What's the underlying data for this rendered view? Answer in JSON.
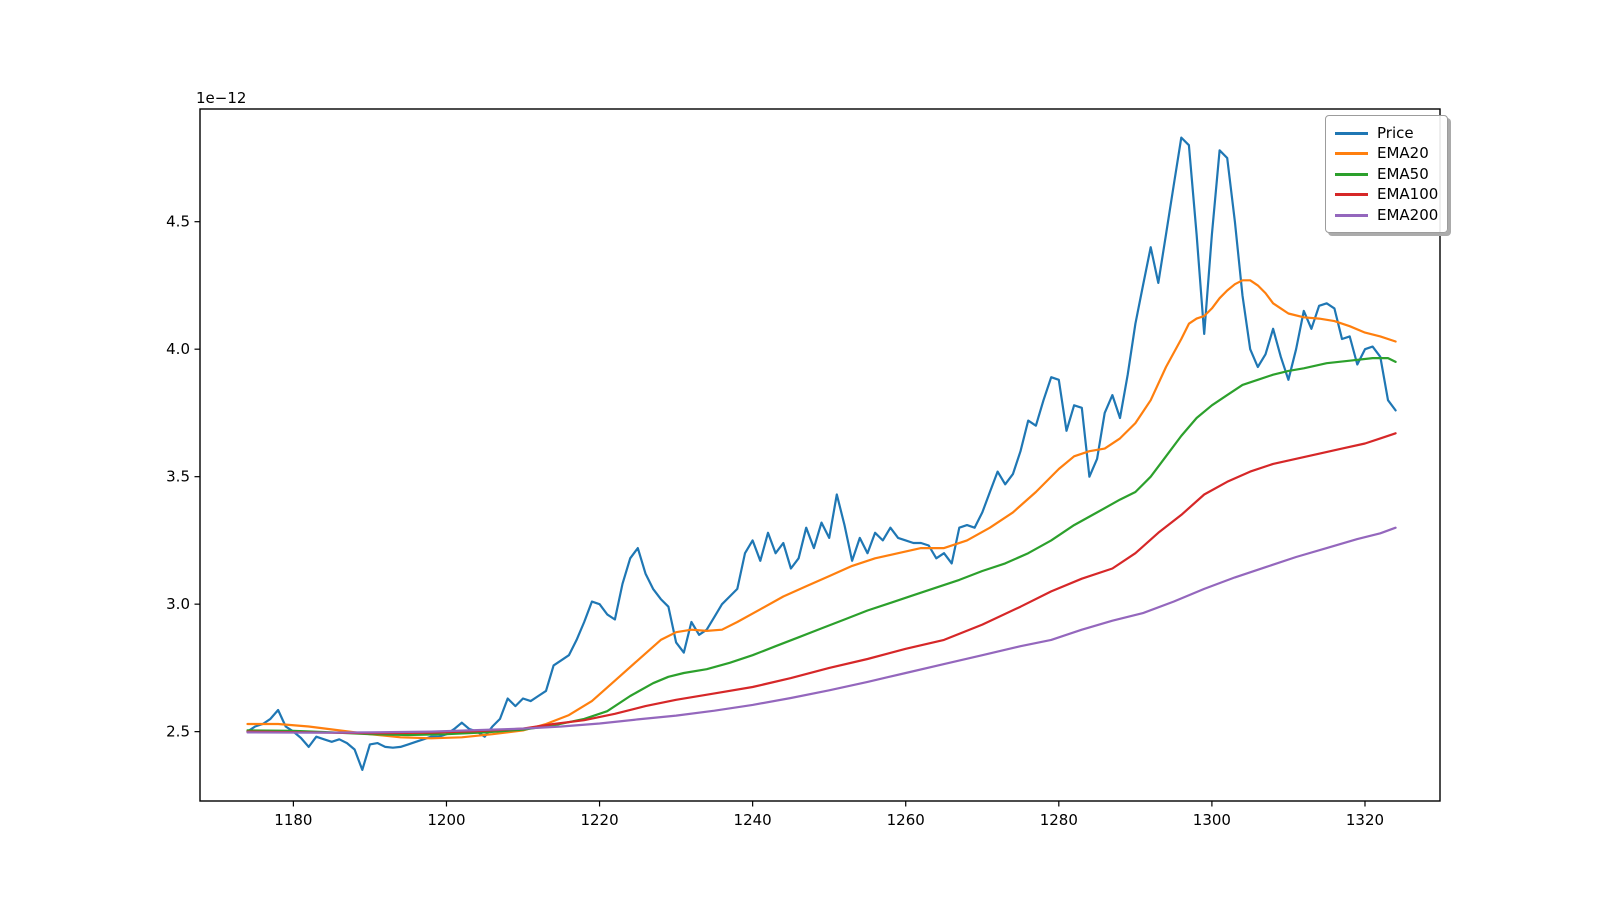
{
  "figure": {
    "background": "#ffffff"
  },
  "chart_data": {
    "type": "line",
    "title": "",
    "xlabel": "",
    "ylabel": "",
    "offset_label": "1e−12",
    "xlim": [
      1167.8,
      1329.8
    ],
    "ylim": [
      2.228,
      4.942
    ],
    "grid": false,
    "legend_position": "upper right",
    "x_ticks": [
      1180,
      1200,
      1220,
      1240,
      1260,
      1280,
      1300,
      1320
    ],
    "x_tick_labels": [
      "1180",
      "1200",
      "1220",
      "1240",
      "1260",
      "1280",
      "1300",
      "1320"
    ],
    "y_ticks": [
      2.5,
      3.0,
      3.5,
      4.0,
      4.5
    ],
    "y_tick_labels": [
      "2.5",
      "3.0",
      "3.5",
      "4.0",
      "4.5"
    ],
    "series": [
      {
        "name": "Price",
        "color": "#1f77b4",
        "x_start": 1174,
        "x_step": 1,
        "values": [
          2.5,
          2.52,
          2.53,
          2.55,
          2.585,
          2.52,
          2.5,
          2.475,
          2.44,
          2.48,
          2.47,
          2.46,
          2.47,
          2.455,
          2.43,
          2.35,
          2.45,
          2.455,
          2.44,
          2.437,
          2.44,
          2.45,
          2.46,
          2.47,
          2.48,
          2.48,
          2.49,
          2.51,
          2.535,
          2.51,
          2.5,
          2.48,
          2.52,
          2.55,
          2.63,
          2.6,
          2.63,
          2.62,
          2.64,
          2.66,
          2.76,
          2.78,
          2.8,
          2.86,
          2.93,
          3.01,
          3.0,
          2.96,
          2.94,
          3.08,
          3.18,
          3.22,
          3.12,
          3.06,
          3.02,
          2.99,
          2.85,
          2.81,
          2.93,
          2.88,
          2.9,
          2.95,
          3.0,
          3.03,
          3.06,
          3.2,
          3.25,
          3.17,
          3.28,
          3.2,
          3.24,
          3.14,
          3.18,
          3.3,
          3.22,
          3.32,
          3.26,
          3.43,
          3.31,
          3.17,
          3.26,
          3.2,
          3.28,
          3.25,
          3.3,
          3.26,
          3.25,
          3.24,
          3.24,
          3.23,
          3.18,
          3.2,
          3.16,
          3.3,
          3.31,
          3.3,
          3.36,
          3.44,
          3.52,
          3.47,
          3.51,
          3.6,
          3.72,
          3.7,
          3.8,
          3.89,
          3.88,
          3.68,
          3.78,
          3.77,
          3.5,
          3.57,
          3.75,
          3.82,
          3.73,
          3.9,
          4.1,
          4.25,
          4.4,
          4.26,
          4.45,
          4.64,
          4.83,
          4.8,
          4.45,
          4.06,
          4.45,
          4.78,
          4.75,
          4.5,
          4.21,
          4.0,
          3.93,
          3.98,
          4.08,
          3.97,
          3.88,
          4.0,
          4.15,
          4.08,
          4.17,
          4.18,
          4.16,
          4.04,
          4.05,
          3.94,
          4.0,
          4.01,
          3.97,
          3.8,
          3.76
        ]
      },
      {
        "name": "EMA20",
        "color": "#ff7f0e",
        "points": [
          [
            1174,
            2.53
          ],
          [
            1178,
            2.53
          ],
          [
            1182,
            2.52
          ],
          [
            1186,
            2.505
          ],
          [
            1190,
            2.49
          ],
          [
            1194,
            2.478
          ],
          [
            1198,
            2.474
          ],
          [
            1202,
            2.478
          ],
          [
            1206,
            2.49
          ],
          [
            1210,
            2.505
          ],
          [
            1213,
            2.53
          ],
          [
            1216,
            2.565
          ],
          [
            1219,
            2.62
          ],
          [
            1222,
            2.7
          ],
          [
            1225,
            2.78
          ],
          [
            1228,
            2.86
          ],
          [
            1230,
            2.89
          ],
          [
            1232,
            2.9
          ],
          [
            1234,
            2.895
          ],
          [
            1236,
            2.9
          ],
          [
            1238,
            2.93
          ],
          [
            1241,
            2.98
          ],
          [
            1244,
            3.03
          ],
          [
            1247,
            3.07
          ],
          [
            1250,
            3.11
          ],
          [
            1253,
            3.15
          ],
          [
            1256,
            3.18
          ],
          [
            1259,
            3.2
          ],
          [
            1262,
            3.22
          ],
          [
            1265,
            3.22
          ],
          [
            1268,
            3.25
          ],
          [
            1271,
            3.3
          ],
          [
            1274,
            3.36
          ],
          [
            1277,
            3.44
          ],
          [
            1280,
            3.53
          ],
          [
            1282,
            3.58
          ],
          [
            1284,
            3.6
          ],
          [
            1286,
            3.61
          ],
          [
            1288,
            3.65
          ],
          [
            1290,
            3.71
          ],
          [
            1292,
            3.8
          ],
          [
            1294,
            3.93
          ],
          [
            1296,
            4.04
          ],
          [
            1297,
            4.1
          ],
          [
            1298,
            4.12
          ],
          [
            1299,
            4.13
          ],
          [
            1300,
            4.16
          ],
          [
            1301,
            4.2
          ],
          [
            1302,
            4.23
          ],
          [
            1303,
            4.255
          ],
          [
            1304,
            4.27
          ],
          [
            1305,
            4.27
          ],
          [
            1306,
            4.25
          ],
          [
            1307,
            4.22
          ],
          [
            1308,
            4.18
          ],
          [
            1309,
            4.16
          ],
          [
            1310,
            4.14
          ],
          [
            1312,
            4.125
          ],
          [
            1314,
            4.12
          ],
          [
            1316,
            4.11
          ],
          [
            1318,
            4.09
          ],
          [
            1320,
            4.065
          ],
          [
            1322,
            4.05
          ],
          [
            1324,
            4.03
          ]
        ]
      },
      {
        "name": "EMA50",
        "color": "#2ca02c",
        "points": [
          [
            1174,
            2.505
          ],
          [
            1180,
            2.503
          ],
          [
            1185,
            2.497
          ],
          [
            1190,
            2.49
          ],
          [
            1195,
            2.487
          ],
          [
            1200,
            2.49
          ],
          [
            1205,
            2.497
          ],
          [
            1210,
            2.508
          ],
          [
            1214,
            2.525
          ],
          [
            1218,
            2.55
          ],
          [
            1221,
            2.58
          ],
          [
            1224,
            2.64
          ],
          [
            1227,
            2.69
          ],
          [
            1229,
            2.715
          ],
          [
            1231,
            2.73
          ],
          [
            1234,
            2.745
          ],
          [
            1237,
            2.77
          ],
          [
            1240,
            2.8
          ],
          [
            1243,
            2.835
          ],
          [
            1246,
            2.87
          ],
          [
            1249,
            2.905
          ],
          [
            1252,
            2.94
          ],
          [
            1255,
            2.975
          ],
          [
            1258,
            3.005
          ],
          [
            1261,
            3.035
          ],
          [
            1264,
            3.065
          ],
          [
            1267,
            3.095
          ],
          [
            1270,
            3.13
          ],
          [
            1273,
            3.16
          ],
          [
            1276,
            3.2
          ],
          [
            1279,
            3.25
          ],
          [
            1282,
            3.31
          ],
          [
            1285,
            3.36
          ],
          [
            1288,
            3.41
          ],
          [
            1290,
            3.44
          ],
          [
            1292,
            3.5
          ],
          [
            1294,
            3.58
          ],
          [
            1296,
            3.66
          ],
          [
            1298,
            3.73
          ],
          [
            1300,
            3.78
          ],
          [
            1302,
            3.82
          ],
          [
            1304,
            3.86
          ],
          [
            1306,
            3.88
          ],
          [
            1308,
            3.9
          ],
          [
            1310,
            3.915
          ],
          [
            1312,
            3.925
          ],
          [
            1315,
            3.945
          ],
          [
            1318,
            3.955
          ],
          [
            1321,
            3.965
          ],
          [
            1323,
            3.965
          ],
          [
            1324,
            3.95
          ]
        ]
      },
      {
        "name": "EMA100",
        "color": "#d62728",
        "points": [
          [
            1174,
            2.5
          ],
          [
            1182,
            2.497
          ],
          [
            1190,
            2.494
          ],
          [
            1198,
            2.496
          ],
          [
            1204,
            2.502
          ],
          [
            1210,
            2.512
          ],
          [
            1214,
            2.53
          ],
          [
            1218,
            2.545
          ],
          [
            1222,
            2.57
          ],
          [
            1226,
            2.6
          ],
          [
            1230,
            2.625
          ],
          [
            1235,
            2.65
          ],
          [
            1240,
            2.675
          ],
          [
            1245,
            2.71
          ],
          [
            1250,
            2.75
          ],
          [
            1255,
            2.785
          ],
          [
            1260,
            2.825
          ],
          [
            1265,
            2.86
          ],
          [
            1270,
            2.92
          ],
          [
            1275,
            2.99
          ],
          [
            1279,
            3.05
          ],
          [
            1283,
            3.1
          ],
          [
            1287,
            3.14
          ],
          [
            1290,
            3.2
          ],
          [
            1293,
            3.28
          ],
          [
            1296,
            3.35
          ],
          [
            1299,
            3.43
          ],
          [
            1302,
            3.48
          ],
          [
            1305,
            3.52
          ],
          [
            1308,
            3.55
          ],
          [
            1311,
            3.57
          ],
          [
            1314,
            3.59
          ],
          [
            1317,
            3.61
          ],
          [
            1320,
            3.63
          ],
          [
            1322,
            3.65
          ],
          [
            1324,
            3.67
          ]
        ]
      },
      {
        "name": "EMA200",
        "color": "#9467bd",
        "points": [
          [
            1174,
            2.497
          ],
          [
            1182,
            2.496
          ],
          [
            1190,
            2.497
          ],
          [
            1198,
            2.5
          ],
          [
            1205,
            2.507
          ],
          [
            1210,
            2.512
          ],
          [
            1215,
            2.52
          ],
          [
            1220,
            2.532
          ],
          [
            1225,
            2.548
          ],
          [
            1230,
            2.563
          ],
          [
            1235,
            2.582
          ],
          [
            1240,
            2.605
          ],
          [
            1245,
            2.632
          ],
          [
            1250,
            2.662
          ],
          [
            1255,
            2.695
          ],
          [
            1260,
            2.73
          ],
          [
            1265,
            2.765
          ],
          [
            1270,
            2.8
          ],
          [
            1275,
            2.835
          ],
          [
            1279,
            2.86
          ],
          [
            1283,
            2.9
          ],
          [
            1287,
            2.935
          ],
          [
            1291,
            2.965
          ],
          [
            1295,
            3.01
          ],
          [
            1299,
            3.06
          ],
          [
            1303,
            3.105
          ],
          [
            1307,
            3.145
          ],
          [
            1311,
            3.185
          ],
          [
            1315,
            3.22
          ],
          [
            1319,
            3.255
          ],
          [
            1322,
            3.278
          ],
          [
            1324,
            3.3
          ]
        ]
      }
    ]
  }
}
